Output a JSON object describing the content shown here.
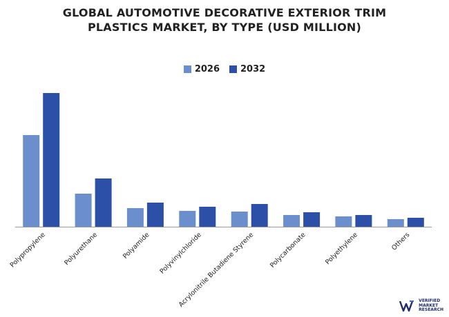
{
  "chart_data": {
    "type": "bar",
    "title": "GLOBAL AUTOMOTIVE DECORATIVE EXTERIOR TRIM\nPLASTICS MARKET, BY TYPE (USD MILLION)",
    "title_lines": [
      "GLOBAL AUTOMOTIVE DECORATIVE EXTERIOR TRIM",
      "PLASTICS MARKET, BY TYPE (USD MILLION)"
    ],
    "categories": [
      "Polypropylene",
      "Polyurethane",
      "Polyamide",
      "Polyvinylchloride",
      "Acrylonitrile Butadiene Styrene",
      "Polycarbonate",
      "Polyethylene",
      "Others"
    ],
    "series": [
      {
        "name": "2026",
        "color": "#6a8fcc",
        "values": [
          133,
          48,
          27,
          23,
          22,
          17,
          15,
          11
        ]
      },
      {
        "name": "2032",
        "color": "#2c50a8",
        "values": [
          194,
          70,
          35,
          29,
          33,
          21,
          17,
          13
        ]
      }
    ],
    "xlabel": "",
    "ylabel": "",
    "ylim": [
      0,
      200
    ],
    "grid": false,
    "legend_position": "top-center"
  },
  "watermark": {
    "logo_icon": "vmr-logo-icon",
    "lines": [
      "VERIFIED",
      "MARKET",
      "RESEARCH"
    ]
  }
}
